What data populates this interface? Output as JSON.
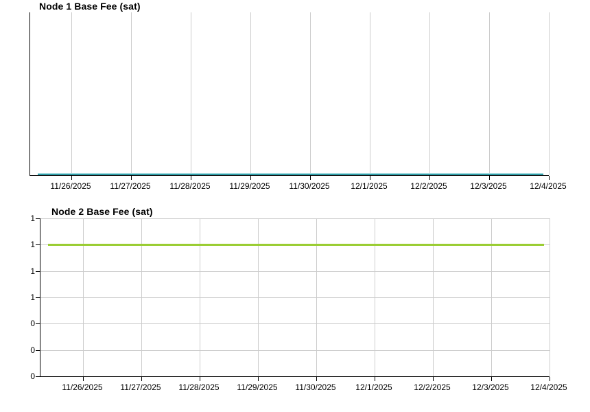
{
  "colors": {
    "background": "#ffffff",
    "axis": "#000000",
    "gridline": "#cccccc",
    "node1_line": "#2f9ca6",
    "node2_line": "#9acd32"
  },
  "chart_data": [
    {
      "type": "line",
      "title": "Node 1 Base Fee (sat)",
      "x": [
        "11/26/2025",
        "11/27/2025",
        "11/28/2025",
        "11/29/2025",
        "11/30/2025",
        "12/1/2025",
        "12/2/2025",
        "12/3/2025",
        "12/4/2025"
      ],
      "series": [
        {
          "name": "Node 1 Base Fee (sat)",
          "values": [
            0,
            0,
            0,
            0,
            0,
            0,
            0,
            0,
            0
          ],
          "color": "#2f9ca6"
        }
      ],
      "y_tick_labels": [],
      "ylim": null,
      "xlabel": "",
      "ylabel": "",
      "grid": "vertical",
      "legend": "none"
    },
    {
      "type": "line",
      "title": "Node 2 Base Fee (sat)",
      "x": [
        "11/26/2025",
        "11/27/2025",
        "11/28/2025",
        "11/29/2025",
        "11/30/2025",
        "12/1/2025",
        "12/2/2025",
        "12/3/2025",
        "12/4/2025"
      ],
      "series": [
        {
          "name": "Node 2 Base Fee (sat)",
          "values": [
            1,
            1,
            1,
            1,
            1,
            1,
            1,
            1,
            1
          ],
          "color": "#9acd32"
        }
      ],
      "y_tick_labels": [
        "1",
        "1",
        "1",
        "1",
        "0",
        "0",
        "0"
      ],
      "ylim": [
        0,
        1.2
      ],
      "xlabel": "",
      "ylabel": "",
      "grid": "both",
      "legend": "none"
    }
  ]
}
